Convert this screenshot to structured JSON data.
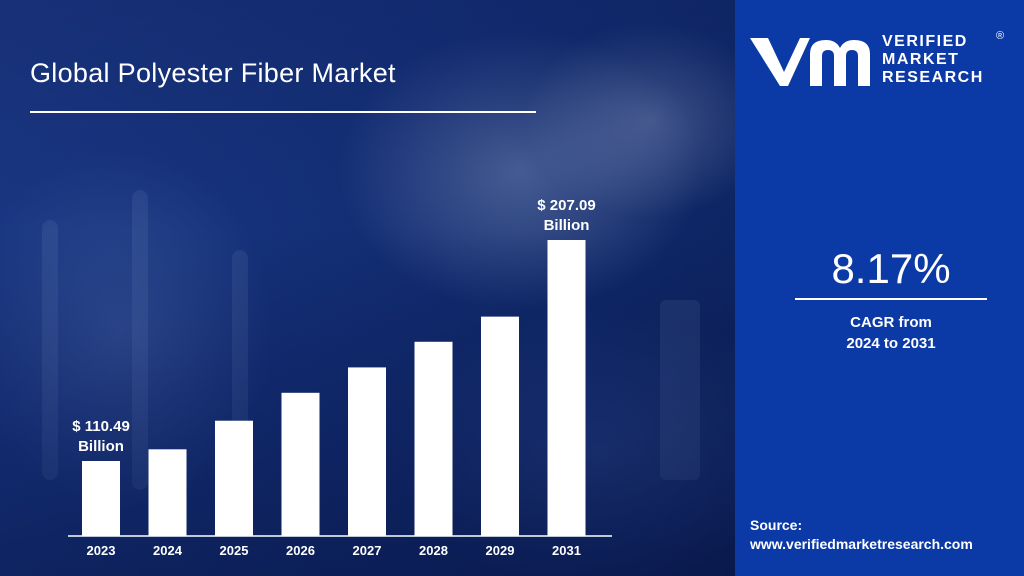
{
  "title": "Global Polyester Fiber Market",
  "brand": {
    "line1": "VERIFIED",
    "line2": "MARKET",
    "line3": "RESEARCH",
    "registered": "®",
    "color": "#0b3aa6"
  },
  "cagr": {
    "value": "8.17%",
    "caption_line1": "CAGR from",
    "caption_line2": "2024 to 2031"
  },
  "source": {
    "label": "Source:",
    "url": "www.verifiedmarketresearch.com"
  },
  "chart_data": {
    "type": "bar",
    "title": "Global Polyester Fiber Market",
    "xlabel": "",
    "ylabel": "",
    "categories": [
      "2023",
      "2024",
      "2025",
      "2026",
      "2027",
      "2028",
      "2029",
      "2031"
    ],
    "values": [
      110.49,
      115.6,
      128.1,
      140.3,
      151.4,
      162.6,
      173.6,
      207.09
    ],
    "data_labels": [
      {
        "index": 0,
        "line1": "$ 110.49",
        "line2": "Billion"
      },
      {
        "index": 7,
        "line1": "$ 207.09",
        "line2": "Billion"
      }
    ],
    "ylim": [
      80,
      220
    ],
    "grid": false,
    "legend": "none",
    "bar_color": "#ffffff"
  }
}
